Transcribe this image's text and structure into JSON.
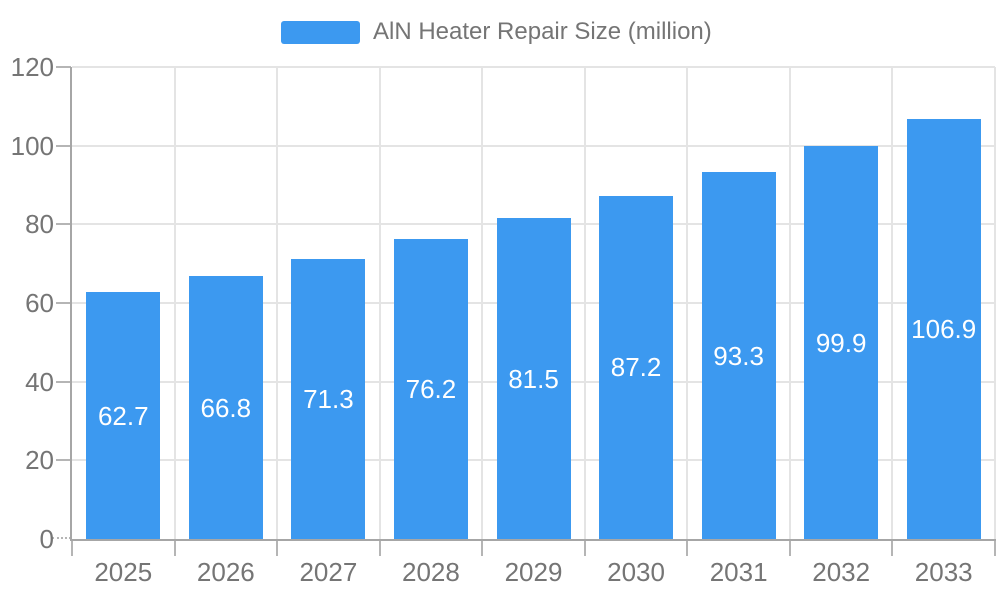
{
  "legend": {
    "label": "AlN Heater Repair Size (million)"
  },
  "chart_data": {
    "type": "bar",
    "title": "",
    "categories": [
      "2025",
      "2026",
      "2027",
      "2028",
      "2029",
      "2030",
      "2031",
      "2032",
      "2033"
    ],
    "series": [
      {
        "name": "AlN Heater Repair Size (million)",
        "values": [
          62.7,
          66.8,
          71.3,
          76.2,
          81.5,
          87.2,
          93.3,
          99.9,
          106.9
        ]
      }
    ],
    "xlabel": "",
    "ylabel": "",
    "ylim": [
      0,
      120
    ],
    "yticks": [
      0,
      20,
      40,
      60,
      80,
      100,
      120
    ],
    "grid": true,
    "legend_position": "top-center",
    "colors": {
      "bar": "#3C99F0",
      "grid": "#E4E4E4",
      "axis": "#A6A6A6",
      "tick": "#B5B5B5",
      "label": "#757575",
      "value_label": "#FFFFFF",
      "background": "#FFFFFF"
    }
  }
}
